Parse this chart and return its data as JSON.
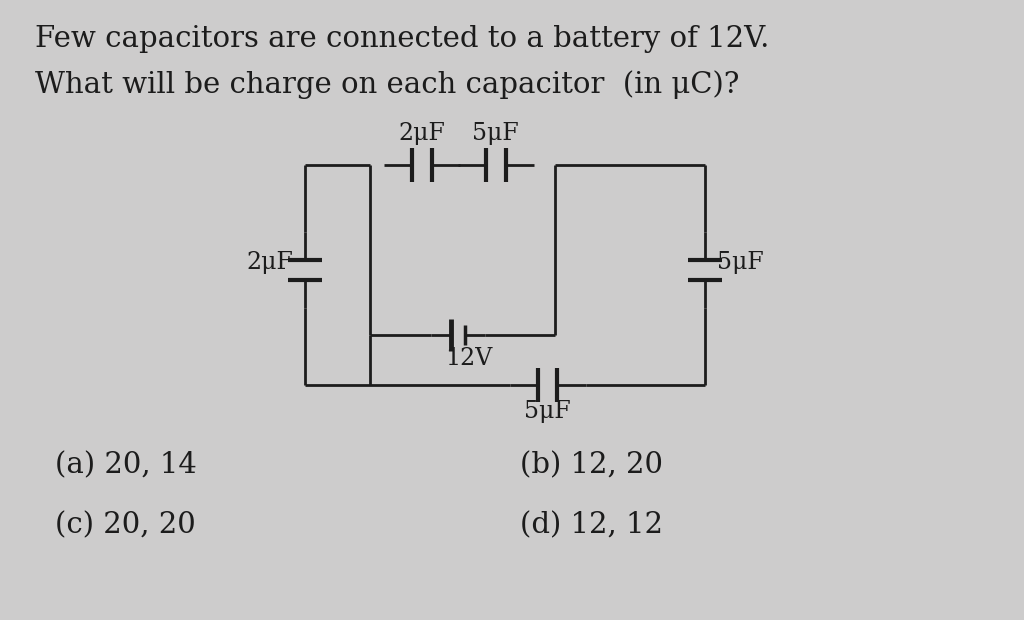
{
  "background_color": "#cdcccc",
  "title_line1": "Few capacitors are connected to a battery of 12V.",
  "title_line2": "What will be charge on each capacitor  (in μC)?",
  "title_fontsize": 21,
  "options": [
    "(a) 20, 14",
    "(b) 12, 20",
    "(c) 20, 20",
    "(d) 12, 12"
  ],
  "option_fontsize": 21,
  "circuit_color": "#1c1c1c",
  "label_color": "#1c1c1c",
  "label_fontsize": 17,
  "lw": 2.0,
  "OL": 3.05,
  "OR": 7.05,
  "OT": 4.55,
  "OB": 2.35,
  "IL": 3.7,
  "IR": 5.55,
  "IT": 4.1,
  "IB": 2.85
}
